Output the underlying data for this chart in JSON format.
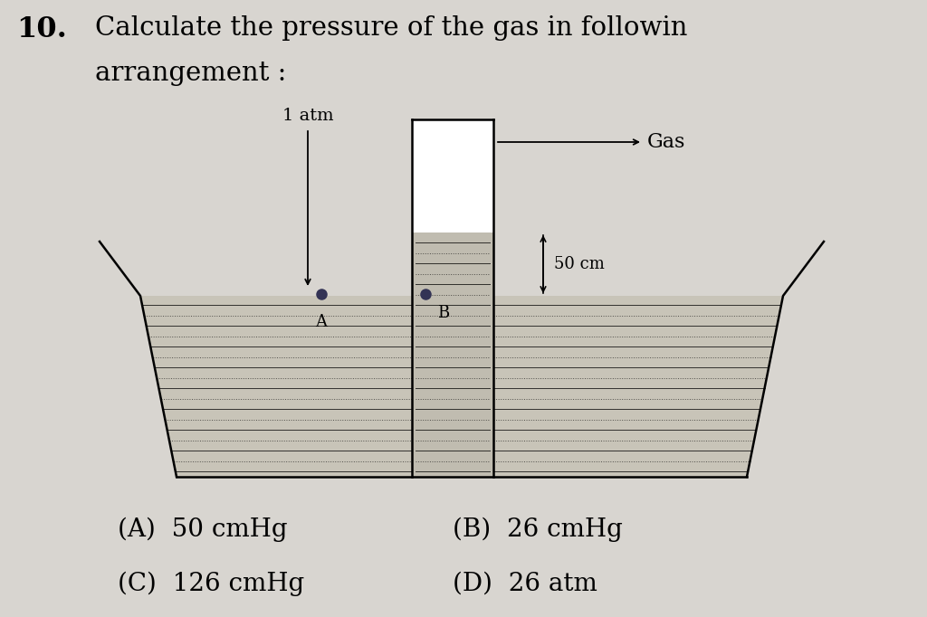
{
  "bg_color": "#d8d5d0",
  "title_number": "10.",
  "title_text_line1": "Calculate the pressure of the gas in followin",
  "title_text_line2": "arrangement :",
  "title_fontsize": 21,
  "title_fontsize_num": 23,
  "label_1atm": "1 atm",
  "label_gas": "Gas",
  "label_50cm": "50 cm",
  "label_A": "A",
  "label_B": "B",
  "answer_A": "(A)  50 cmHg",
  "answer_B": "(B)  26 cmHg",
  "answer_C": "(C)  126 cmHg",
  "answer_D": "(D)  26 atm",
  "answer_fontsize": 20,
  "lw": 1.8
}
